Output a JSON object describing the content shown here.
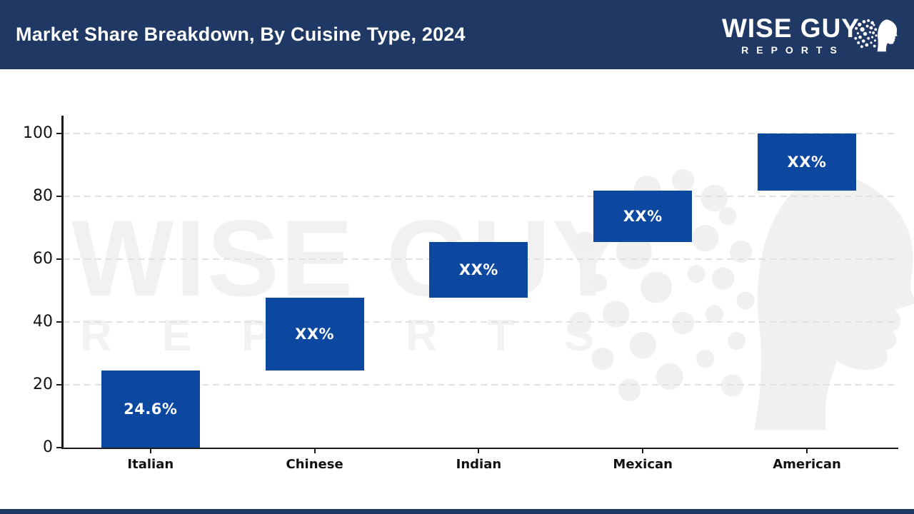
{
  "header": {
    "title": "Market Share Breakdown, By Cuisine Type, 2024",
    "logo": {
      "line1": "WISE GUY",
      "line2": "REPORTS"
    }
  },
  "watermark": {
    "line1": "WISE GUY",
    "line2": "REPORTS"
  },
  "colors": {
    "header_bg": "#1f3864",
    "bar": "#0c48a0",
    "grid": "#e1e1e1",
    "axis": "#1a1a1a",
    "watermark": "#f0f0f0",
    "bar_label": "#ffffff"
  },
  "chart_data": {
    "type": "bar",
    "subtype": "waterfall",
    "title": "Market Share Breakdown, By Cuisine Type, 2024",
    "categories": [
      "Italian",
      "Chinese",
      "Indian",
      "Mexican",
      "American"
    ],
    "segments": [
      {
        "category": "Italian",
        "start": 0,
        "end": 24.6,
        "label": "24.6%"
      },
      {
        "category": "Chinese",
        "start": 24.6,
        "end": 47.6,
        "label": "XX%"
      },
      {
        "category": "Indian",
        "start": 47.6,
        "end": 65.3,
        "label": "XX%"
      },
      {
        "category": "Mexican",
        "start": 65.3,
        "end": 81.7,
        "label": "XX%"
      },
      {
        "category": "American",
        "start": 81.7,
        "end": 100,
        "label": "XX%"
      }
    ],
    "xlabel": "",
    "ylabel": "",
    "ylim": [
      0,
      100
    ],
    "yticks": [
      0,
      20,
      40,
      60,
      80,
      100
    ],
    "grid": "horizontal-dashed",
    "legend": "none"
  }
}
